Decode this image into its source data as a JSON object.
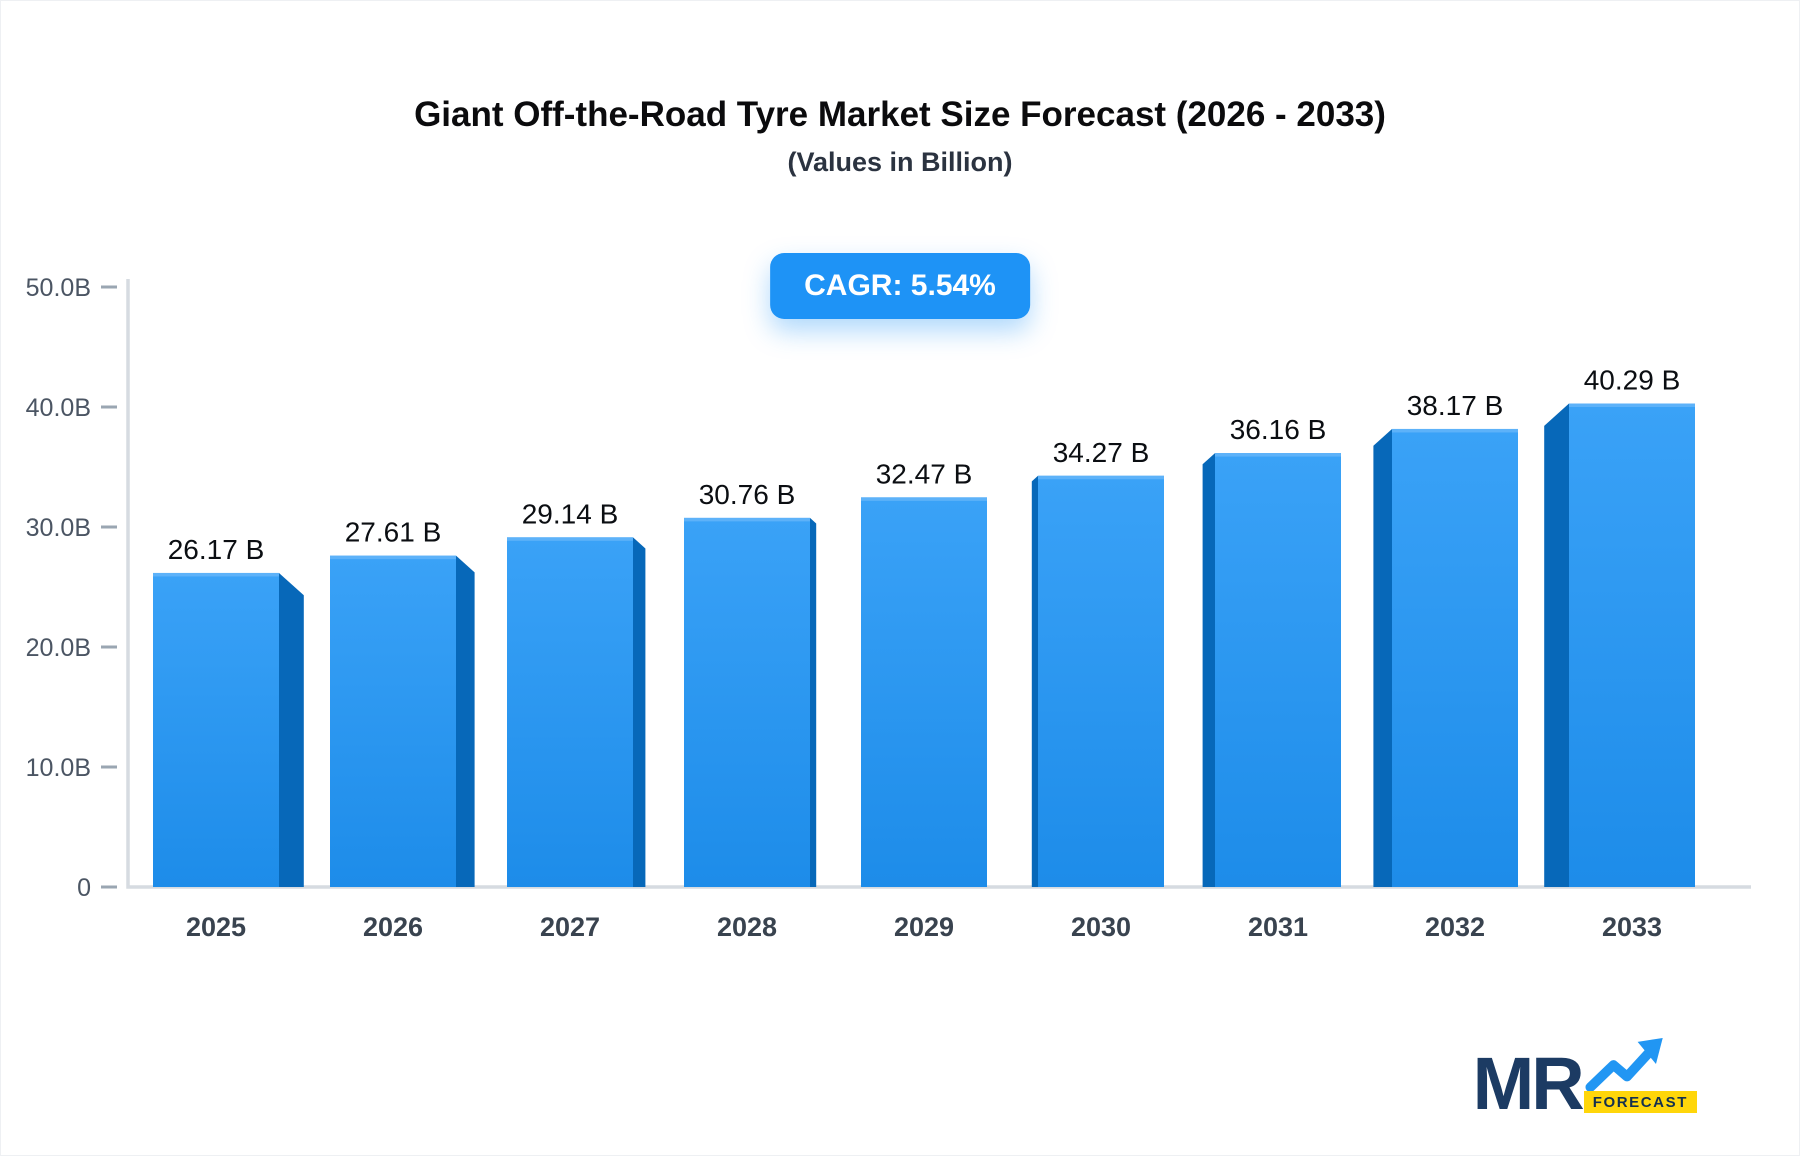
{
  "header": {
    "title": "Giant Off-the-Road Tyre Market Size Forecast (2026 - 2033)",
    "subtitle": "(Values in Billion)"
  },
  "badge": {
    "label": "CAGR: 5.54%",
    "bg_color": "#1e93f6",
    "text_color": "#ffffff"
  },
  "chart_data": {
    "type": "bar",
    "title": "Giant Off-the-Road Tyre Market Size Forecast (2026 - 2033)",
    "subtitle": "(Values in Billion)",
    "categories": [
      "2025",
      "2026",
      "2027",
      "2028",
      "2029",
      "2030",
      "2031",
      "2032",
      "2033"
    ],
    "values": [
      26.17,
      27.61,
      29.14,
      30.76,
      32.47,
      34.27,
      36.16,
      38.17,
      40.29
    ],
    "value_suffix": " B",
    "data_labels": [
      "26.17 B",
      "27.61 B",
      "29.14 B",
      "30.76 B",
      "32.47 B",
      "34.27 B",
      "36.16 B",
      "38.17 B",
      "40.29 B"
    ],
    "ylabel": "",
    "xlabel": "",
    "ylim": [
      0,
      50
    ],
    "yticks": [
      {
        "value": 50,
        "label": "50.0B"
      },
      {
        "value": 40,
        "label": "40.0B"
      },
      {
        "value": 30,
        "label": "30.0B"
      },
      {
        "value": 20,
        "label": "20.0B"
      },
      {
        "value": 10,
        "label": "10.0B"
      },
      {
        "value": 0,
        "label": "0"
      }
    ],
    "grid": false,
    "legend": null,
    "style": "3d-column-center-perspective",
    "colors": {
      "bar_face_top": "#3aa2f7",
      "bar_face_bottom": "#1d8ce9",
      "bar_side": "#0768b9",
      "bar_top_edge": "#62b4f8",
      "axis": "#d6dbe1",
      "tick_dash": "#9aa6b2",
      "tick_label": "#4b5563",
      "category_label": "#39434f",
      "data_label": "#0b0e12"
    }
  },
  "logo": {
    "text_mr": "MR",
    "text_forecast": "FORECAST",
    "arrow_icon": "trend-up-arrow-icon",
    "colors": {
      "navy": "#1c3b63",
      "blue": "#2196f3",
      "yellow": "#ffd60a"
    }
  }
}
